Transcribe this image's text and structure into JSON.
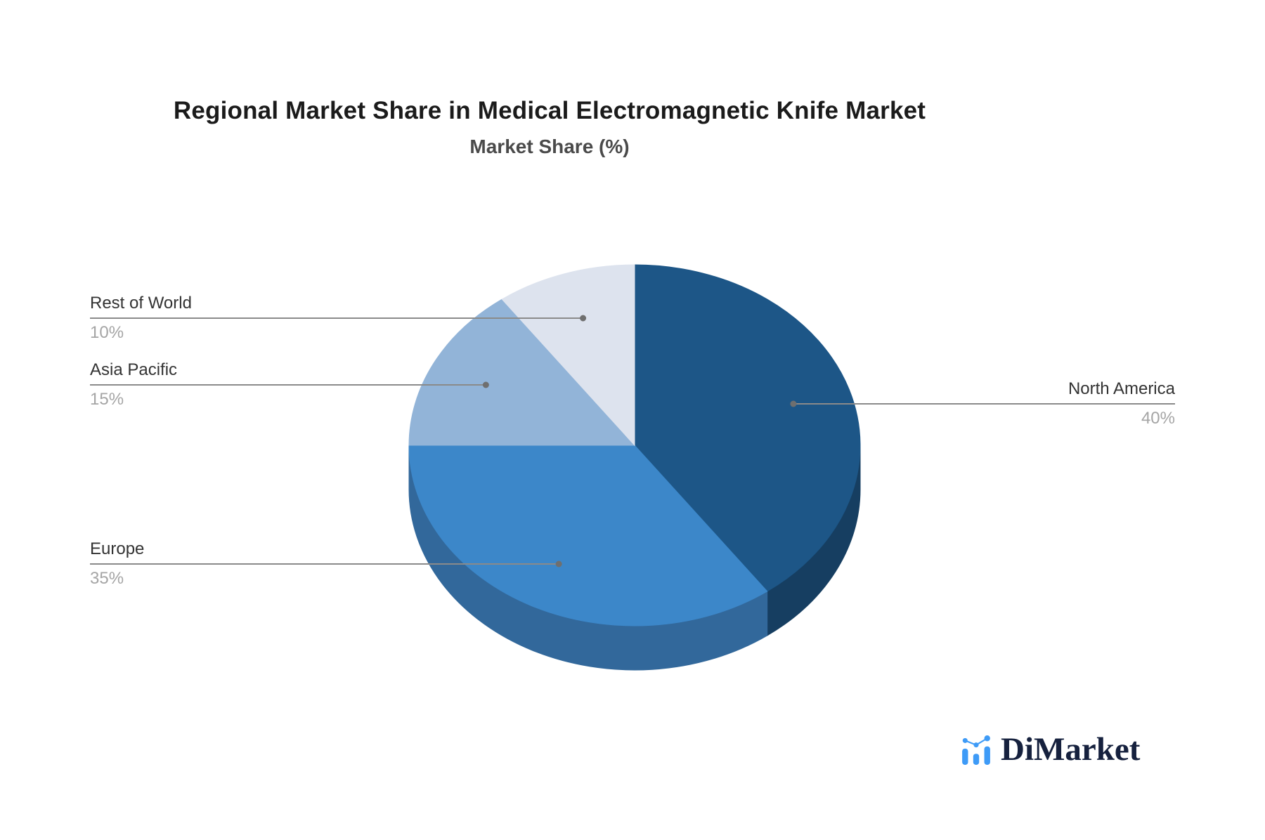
{
  "header": {
    "title": "Regional Market Share in Medical Electromagnetic Knife Market",
    "subtitle": "Market Share (%)"
  },
  "chart_data": {
    "type": "pie",
    "style": "3d",
    "title": "Regional Market Share in Medical Electromagnetic Knife Market",
    "subtitle": "Market Share (%)",
    "unit": "%",
    "categories": [
      "North America",
      "Europe",
      "Asia Pacific",
      "Rest of World"
    ],
    "values": [
      40,
      35,
      15,
      10
    ],
    "value_labels": [
      "40%",
      "35%",
      "15%",
      "10%"
    ],
    "colors": [
      "#1D5687",
      "#3C87C9",
      "#92B4D8",
      "#DDE3EE"
    ],
    "side_colors": [
      "#163E61",
      "#32689B",
      "#6E93BC",
      "#B9C6DA"
    ],
    "start_angle_deg": 0,
    "clockwise": true,
    "legend_position": "none",
    "label_style": {
      "name_color": "#333333",
      "value_color": "#A5A5A5",
      "leader_line_color": "#8A8A8A",
      "leader_dot_color": "#6F6F6F"
    }
  },
  "branding": {
    "logo_text": "DiMarket",
    "logo_icon": "bar-chart-icon",
    "logo_icon_color": "#3E9BF7",
    "logo_text_color": "#16213E"
  },
  "colors": {
    "background": "#FFFFFF",
    "title": "#1B1B1B",
    "subtitle": "#4A4A4A"
  }
}
